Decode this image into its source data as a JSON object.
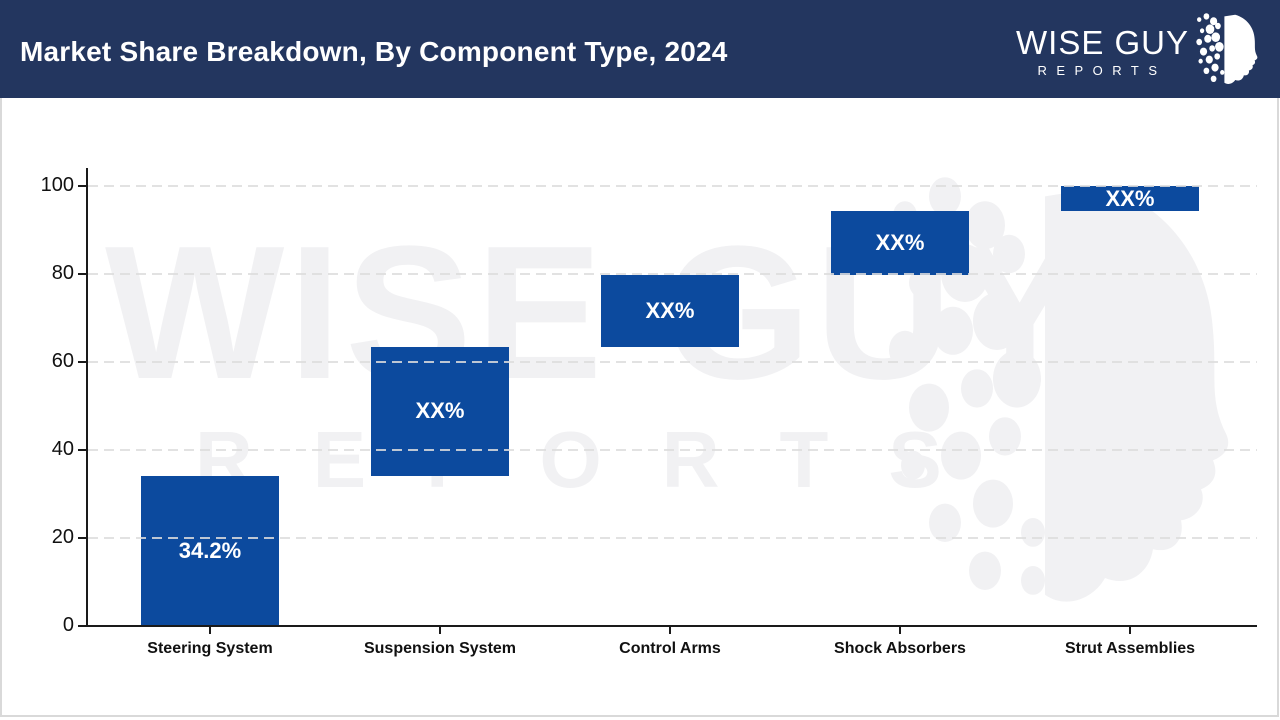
{
  "header": {
    "title": "Market Share Breakdown, By Component Type, 2024",
    "bg_color": "#23365f",
    "logo": {
      "wordmark": "WISE GUY",
      "subtext": "REPORTS"
    }
  },
  "watermark": {
    "wordmark": "WISE GUY",
    "subtext": "REPORTS"
  },
  "chart_data": {
    "type": "bar",
    "subtype": "waterfall",
    "title": "Market Share Breakdown, By Component Type, 2024",
    "categories": [
      "Steering System",
      "Suspension System",
      "Control Arms",
      "Shock Absorbers",
      "Strut Assemblies"
    ],
    "segments": [
      {
        "category": "Steering System",
        "start": 0,
        "end": 34.2,
        "label": "34.2%"
      },
      {
        "category": "Suspension System",
        "start": 34.2,
        "end": 63.4,
        "label": "XX%"
      },
      {
        "category": "Control Arms",
        "start": 63.4,
        "end": 79.8,
        "label": "XX%"
      },
      {
        "category": "Shock Absorbers",
        "start": 79.8,
        "end": 94.3,
        "label": "XX%"
      },
      {
        "category": "Strut Assemblies",
        "start": 94.3,
        "end": 100,
        "label": "XX%"
      }
    ],
    "y_ticks": [
      0,
      20,
      40,
      60,
      80,
      100
    ],
    "ylim": [
      0,
      105
    ],
    "xlabel": "",
    "ylabel": "",
    "grid": "horizontal-dashed",
    "legend": "none",
    "bar_color": "#0c4a9e",
    "bar_label_color": "#ffffff",
    "axis_color": "#1a1a1a"
  }
}
